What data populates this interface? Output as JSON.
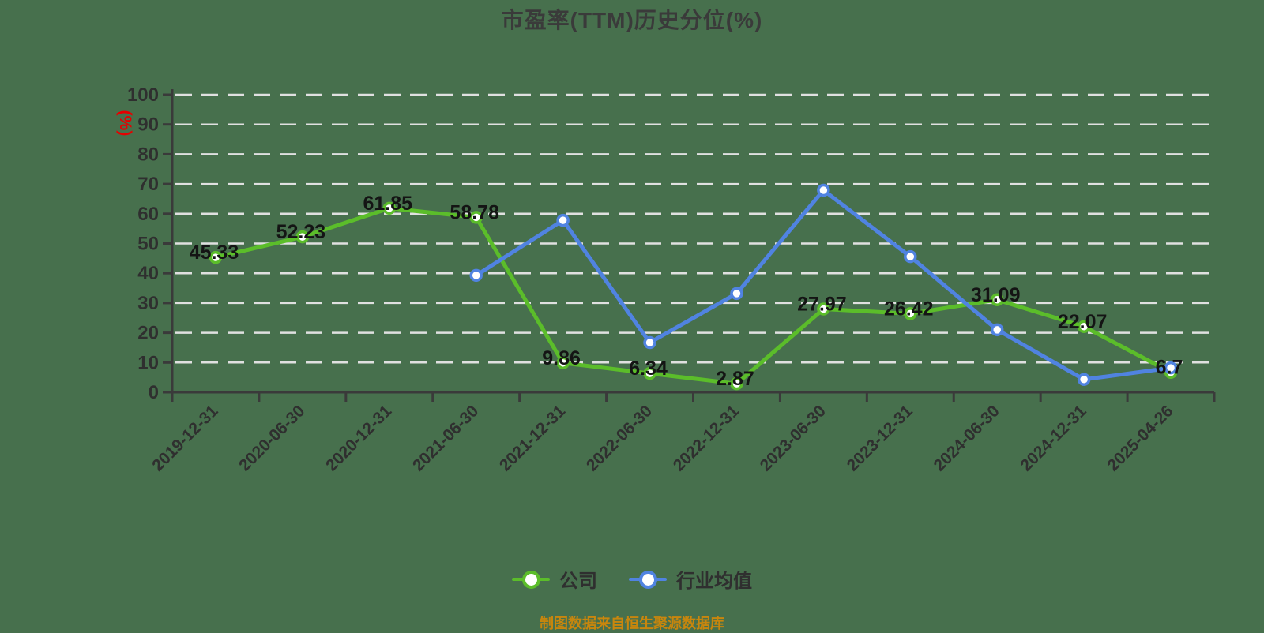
{
  "title": "市盈率(TTM)历史分位(%)",
  "source_note": "制图数据来自恒生聚源数据库",
  "colors": {
    "background": "#47704d",
    "company": "#5bbd2a",
    "industry": "#5083e1",
    "grid": "#e0e0e0",
    "axis": "#3a3a3a",
    "tick_label": "#2f2f2f",
    "data_label": "#141414",
    "title": "#3a3a3a",
    "unit": "#e60000",
    "footer": "#c8860d"
  },
  "legend": {
    "items": [
      {
        "name": "公司",
        "color_key": "company"
      },
      {
        "name": "行业均值",
        "color_key": "industry"
      }
    ]
  },
  "y_axis": {
    "unit_label": "(%)",
    "min": 0,
    "max": 100,
    "ticks": [
      0,
      10,
      20,
      30,
      40,
      50,
      60,
      70,
      80,
      90,
      100
    ]
  },
  "chart_data": {
    "type": "line",
    "title": "市盈率(TTM)历史分位(%)",
    "ylabel": "(%)",
    "ylim": [
      0,
      100
    ],
    "grid": "horizontal-dashed-white",
    "legend_position": "bottom",
    "categories": [
      "2019-12-31",
      "2020-06-30",
      "2020-12-31",
      "2021-06-30",
      "2021-12-31",
      "2022-06-30",
      "2022-12-31",
      "2023-06-30",
      "2023-12-31",
      "2024-06-30",
      "2024-12-31",
      "2025-04-26"
    ],
    "series": [
      {
        "name": "公司",
        "color_key": "company",
        "show_labels": true,
        "values": [
          45.33,
          52.23,
          61.85,
          58.78,
          9.86,
          6.34,
          2.87,
          27.97,
          26.42,
          31.09,
          22.07,
          6.7
        ]
      },
      {
        "name": "行业均值",
        "color_key": "industry",
        "show_labels": false,
        "values": [
          null,
          null,
          null,
          39.3,
          57.8,
          16.7,
          33.2,
          67.9,
          45.6,
          21.0,
          4.3,
          8.2
        ]
      }
    ]
  }
}
